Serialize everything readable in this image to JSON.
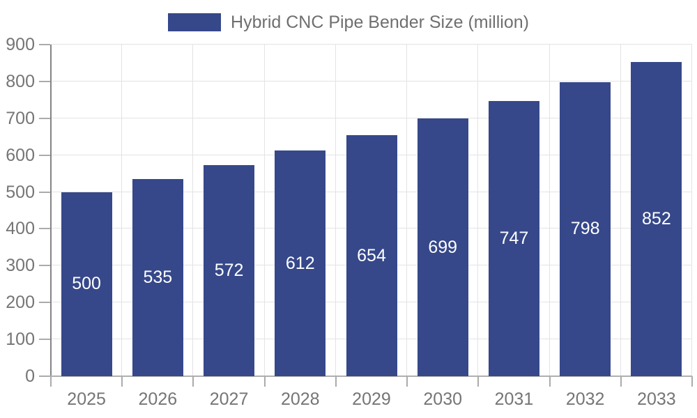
{
  "chart_data": {
    "type": "bar",
    "title": "Hybrid CNC Pipe Bender Size (million)",
    "categories": [
      "2025",
      "2026",
      "2027",
      "2028",
      "2029",
      "2030",
      "2031",
      "2032",
      "2033"
    ],
    "values": [
      500,
      535,
      572,
      612,
      654,
      699,
      747,
      798,
      852
    ],
    "xlabel": "",
    "ylabel": "",
    "ylim": [
      0,
      900
    ],
    "ytick_step": 100,
    "ytick_labels": [
      "0",
      "100",
      "200",
      "300",
      "400",
      "500",
      "600",
      "700",
      "800",
      "900"
    ],
    "grid": true,
    "legend_position": "top-center",
    "value_labels_position": "center-inside",
    "colors": {
      "bar": "#36488A",
      "value_label": "#FFFFFF",
      "axis_label": "#757575",
      "legend_text": "#6F6F6F",
      "gridline": "#E3E3E3",
      "axis_line": "#848484",
      "baseline": "#AFAFAF",
      "tick": "#ABABAB",
      "background": "#FFFFFF"
    }
  }
}
